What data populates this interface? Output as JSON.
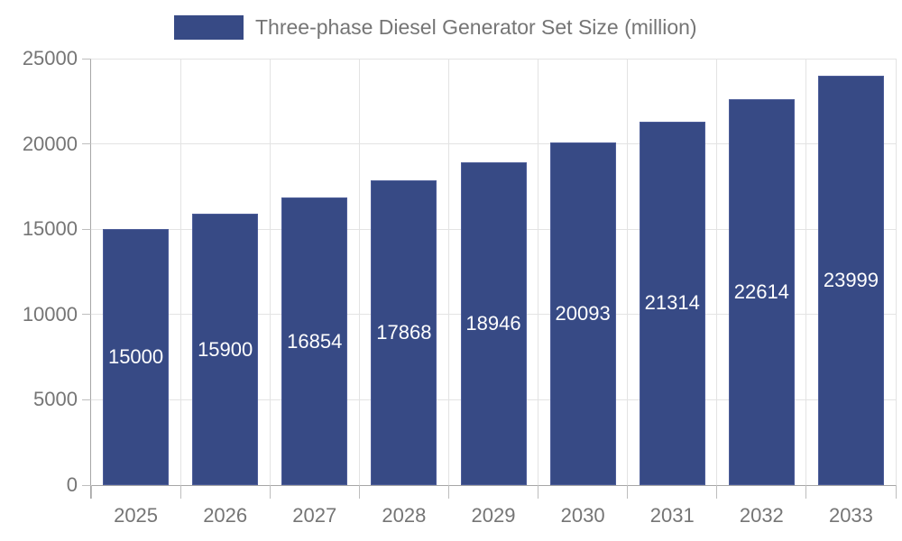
{
  "legend": {
    "label": "Three-phase Diesel Generator Set Size (million)"
  },
  "chart_data": {
    "type": "bar",
    "title": "Three-phase Diesel Generator Set Size (million)",
    "series_name": "Three-phase Diesel Generator Set Size (million)",
    "categories": [
      "2025",
      "2026",
      "2027",
      "2028",
      "2029",
      "2030",
      "2031",
      "2032",
      "2033"
    ],
    "values": [
      15000,
      15900,
      16854,
      17868,
      18946,
      20093,
      21314,
      22614,
      23999
    ],
    "xlabel": "",
    "ylabel": "",
    "ylim": [
      0,
      25000
    ],
    "y_ticks": [
      0,
      5000,
      10000,
      15000,
      20000,
      25000
    ],
    "grid": true,
    "legend_position": "top",
    "value_label_position": "inside-center",
    "colors": {
      "bar": "#374a85",
      "bar_border": "#4d5d99",
      "bar_label": "#ffffff",
      "axis_line": "#a6a6a6",
      "tick": "#bdbdbd",
      "grid_line": "#e3e3e3",
      "axis_text": "#757575",
      "background": "#ffffff"
    }
  }
}
